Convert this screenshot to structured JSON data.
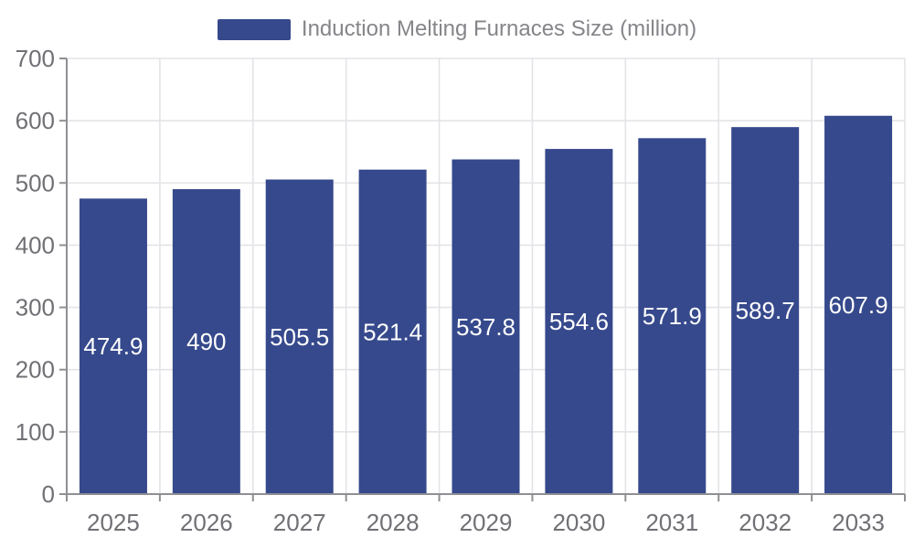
{
  "chart_data": {
    "type": "bar",
    "title": "",
    "legend": "Induction Melting Furnaces Size (million)",
    "legend_position": "top-center",
    "categories": [
      "2025",
      "2026",
      "2027",
      "2028",
      "2029",
      "2030",
      "2031",
      "2032",
      "2033"
    ],
    "series": [
      {
        "name": "Induction Melting Furnaces Size (million)",
        "values": [
          474.9,
          490,
          505.5,
          521.4,
          537.8,
          554.6,
          571.9,
          589.7,
          607.9
        ],
        "labels": [
          "474.9",
          "490",
          "505.5",
          "521.4",
          "537.8",
          "554.6",
          "571.9",
          "589.7",
          "607.9"
        ]
      }
    ],
    "xlabel": "",
    "ylabel": "",
    "ylim": [
      0,
      700
    ],
    "y_ticks": [
      0,
      100,
      200,
      300,
      400,
      500,
      600,
      700
    ],
    "grid": true,
    "colors": {
      "bar": "#36498C",
      "bar_label": "#FFFFFF",
      "axis_line": "#8F8F94",
      "grid_line": "#E4E4E8",
      "tick_label": "#707075",
      "legend_text": "#85858A",
      "background": "#FFFFFF"
    }
  }
}
